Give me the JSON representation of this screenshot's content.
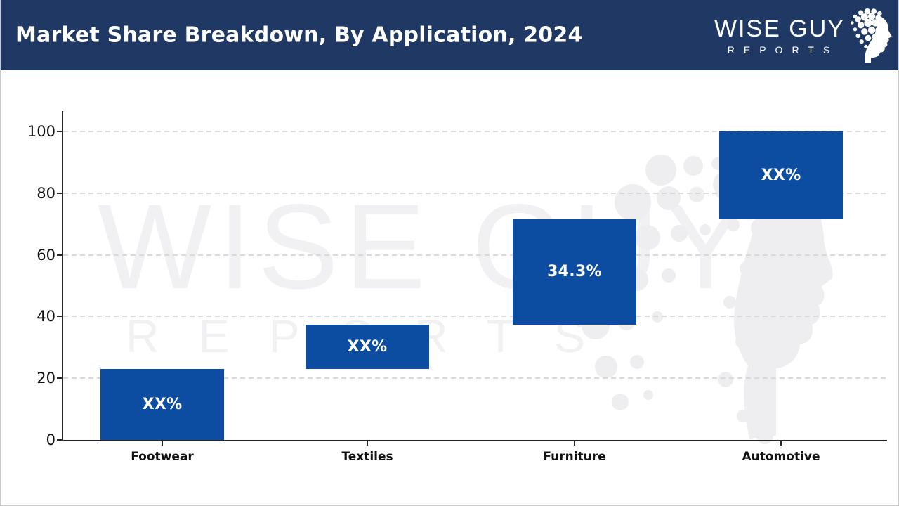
{
  "header": {
    "title": "Market Share Breakdown, By Application, 2024",
    "bg_color": "#1f3864",
    "logo": {
      "line1": "WISE GUY",
      "line2": "REPORTS",
      "icon": "dotted-head-profile"
    }
  },
  "watermark": {
    "line1": "WISE GUY",
    "line2": "REPORTS",
    "icon": "dotted-head-profile"
  },
  "chart_data": {
    "type": "bar",
    "subtype": "floating-waterfall",
    "title": "Market Share Breakdown, By Application, 2024",
    "categories": [
      "Footwear",
      "Textiles",
      "Furniture",
      "Automotive"
    ],
    "segments": [
      {
        "category": "Footwear",
        "start": 0,
        "end": 23,
        "value": 23,
        "value_label": "XX%"
      },
      {
        "category": "Textiles",
        "start": 23,
        "end": 37.3,
        "value": 14.3,
        "value_label": "XX%"
      },
      {
        "category": "Furniture",
        "start": 37.3,
        "end": 71.6,
        "value": 34.3,
        "value_label": "34.3%"
      },
      {
        "category": "Automotive",
        "start": 71.6,
        "end": 100,
        "value": 28.4,
        "value_label": "XX%"
      }
    ],
    "xlabel": "",
    "ylabel": "",
    "ylim": [
      0,
      100
    ],
    "yticks": [
      0,
      20,
      40,
      60,
      80,
      100
    ],
    "grid": "horizontal-dashed",
    "legend": "none",
    "bar_color": "#0d4da1",
    "value_label_color": "#ffffff",
    "axis_color": "#262626"
  }
}
